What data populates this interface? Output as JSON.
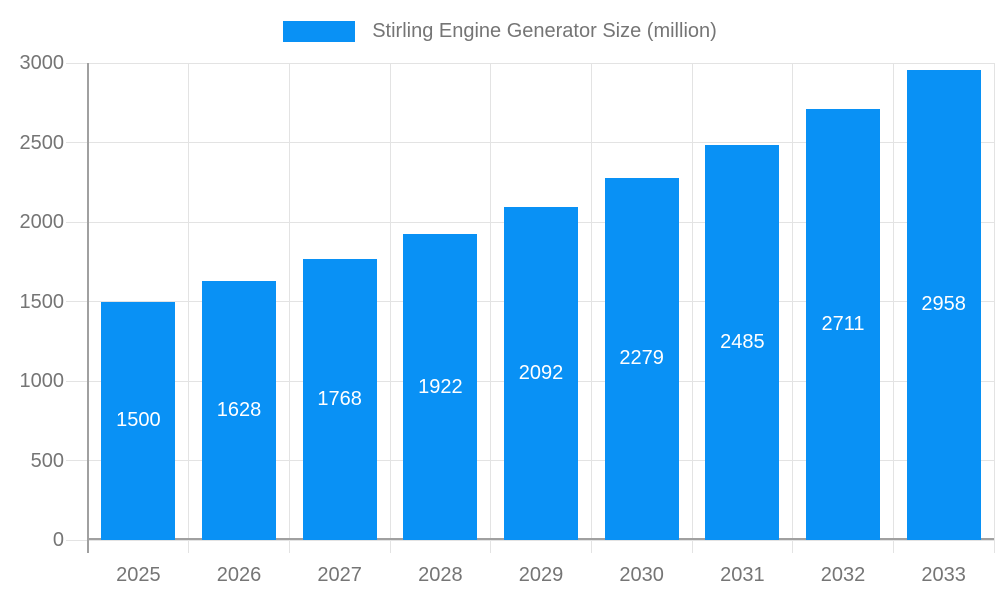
{
  "chart_data": {
    "type": "bar",
    "title": "Stirling Engine Generator Size (million)",
    "categories": [
      "2025",
      "2026",
      "2027",
      "2028",
      "2029",
      "2030",
      "2031",
      "2032",
      "2033"
    ],
    "values": [
      1500,
      1628,
      1768,
      1922,
      2092,
      2279,
      2485,
      2711,
      2958
    ],
    "xlabel": "",
    "ylabel": "",
    "ylim": [
      0,
      3000
    ],
    "ytick_step": 500,
    "yticks": [
      0,
      500,
      1000,
      1500,
      2000,
      2500,
      3000
    ],
    "grid": true,
    "legend_position": "top",
    "value_labels_position": "inside-center",
    "colors": {
      "bar": "#0991F5",
      "grid": "#E3E3E3",
      "axis": "#A0A0A0",
      "text": "#757575",
      "value_label": "#FFFFFF",
      "background": "#FFFFFF"
    }
  }
}
